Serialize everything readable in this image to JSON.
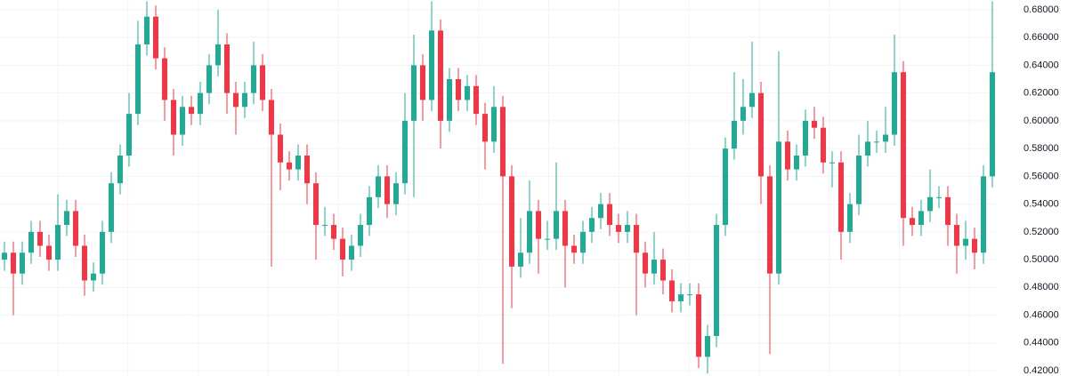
{
  "chart_data": {
    "type": "candlestick",
    "up_color": "#22ab94",
    "down_color": "#f23645",
    "grid": true,
    "ylim": [
      0.4162,
      0.687
    ],
    "yticks": [
      {
        "value": 0.42,
        "label": "0.42000"
      },
      {
        "value": 0.44,
        "label": "0.44000"
      },
      {
        "value": 0.46,
        "label": "0.46000"
      },
      {
        "value": 0.48,
        "label": "0.48000"
      },
      {
        "value": 0.5,
        "label": "0.50000"
      },
      {
        "value": 0.52,
        "label": "0.52000"
      },
      {
        "value": 0.54,
        "label": "0.54000"
      },
      {
        "value": 0.56,
        "label": "0.56000"
      },
      {
        "value": 0.58,
        "label": "0.58000"
      },
      {
        "value": 0.6,
        "label": "0.60000"
      },
      {
        "value": 0.62,
        "label": "0.62000"
      },
      {
        "value": 0.64,
        "label": "0.64000"
      },
      {
        "value": 0.66,
        "label": "0.66000"
      },
      {
        "value": 0.68,
        "label": "0.68000"
      }
    ],
    "open": [
      0.5,
      0.505,
      0.49,
      0.505,
      0.52,
      0.51,
      0.5,
      0.525,
      0.535,
      0.51,
      0.485,
      0.49,
      0.52,
      0.555,
      0.575,
      0.605,
      0.655,
      0.675,
      0.645,
      0.615,
      0.59,
      0.61,
      0.605,
      0.62,
      0.64,
      0.655,
      0.62,
      0.61,
      0.62,
      0.64,
      0.615,
      0.59,
      0.57,
      0.565,
      0.575,
      0.555,
      0.525,
      0.525,
      0.515,
      0.5,
      0.51,
      0.525,
      0.545,
      0.56,
      0.54,
      0.555,
      0.6,
      0.64,
      0.615,
      0.665,
      0.6,
      0.63,
      0.615,
      0.625,
      0.605,
      0.585,
      0.61,
      0.56,
      0.495,
      0.505,
      0.535,
      0.515,
      0.515,
      0.535,
      0.51,
      0.505,
      0.52,
      0.53,
      0.54,
      0.525,
      0.52,
      0.525,
      0.505,
      0.49,
      0.5,
      0.485,
      0.47,
      0.475,
      0.475,
      0.43,
      0.445,
      0.525,
      0.58,
      0.6,
      0.61,
      0.62,
      0.56,
      0.49,
      0.585,
      0.565,
      0.575,
      0.6,
      0.595,
      0.57,
      0.57,
      0.52,
      0.54,
      0.575,
      0.585,
      0.585,
      0.59,
      0.635,
      0.53,
      0.525,
      0.535,
      0.545,
      0.545,
      0.525,
      0.51,
      0.515,
      0.505,
      0.56
    ],
    "high": [
      0.513,
      0.513,
      0.513,
      0.528,
      0.528,
      0.518,
      0.547,
      0.543,
      0.543,
      0.518,
      0.498,
      0.528,
      0.563,
      0.583,
      0.62,
      0.672,
      0.686,
      0.683,
      0.653,
      0.623,
      0.618,
      0.618,
      0.628,
      0.648,
      0.68,
      0.663,
      0.628,
      0.628,
      0.657,
      0.648,
      0.623,
      0.598,
      0.578,
      0.583,
      0.583,
      0.563,
      0.538,
      0.533,
      0.523,
      0.518,
      0.533,
      0.553,
      0.568,
      0.568,
      0.563,
      0.62,
      0.662,
      0.648,
      0.686,
      0.673,
      0.638,
      0.638,
      0.633,
      0.633,
      0.613,
      0.625,
      0.618,
      0.568,
      0.53,
      0.557,
      0.543,
      0.528,
      0.57,
      0.543,
      0.518,
      0.528,
      0.538,
      0.548,
      0.548,
      0.533,
      0.535,
      0.533,
      0.513,
      0.52,
      0.508,
      0.493,
      0.483,
      0.483,
      0.483,
      0.453,
      0.533,
      0.588,
      0.635,
      0.63,
      0.657,
      0.628,
      0.568,
      0.65,
      0.593,
      0.583,
      0.608,
      0.61,
      0.603,
      0.578,
      0.578,
      0.548,
      0.59,
      0.6,
      0.593,
      0.61,
      0.662,
      0.643,
      0.538,
      0.543,
      0.565,
      0.553,
      0.553,
      0.533,
      0.528,
      0.523,
      0.568,
      0.686
    ],
    "low": [
      0.492,
      0.46,
      0.482,
      0.497,
      0.502,
      0.492,
      0.492,
      0.517,
      0.502,
      0.474,
      0.477,
      0.482,
      0.512,
      0.547,
      0.567,
      0.597,
      0.647,
      0.637,
      0.6,
      0.575,
      0.582,
      0.597,
      0.597,
      0.612,
      0.632,
      0.605,
      0.59,
      0.602,
      0.612,
      0.607,
      0.495,
      0.55,
      0.557,
      0.557,
      0.54,
      0.5,
      0.517,
      0.507,
      0.488,
      0.492,
      0.502,
      0.517,
      0.537,
      0.53,
      0.532,
      0.547,
      0.545,
      0.6,
      0.607,
      0.58,
      0.592,
      0.607,
      0.607,
      0.597,
      0.565,
      0.577,
      0.425,
      0.465,
      0.487,
      0.497,
      0.49,
      0.507,
      0.507,
      0.48,
      0.497,
      0.497,
      0.512,
      0.522,
      0.517,
      0.512,
      0.512,
      0.46,
      0.48,
      0.482,
      0.475,
      0.462,
      0.462,
      0.467,
      0.422,
      0.418,
      0.437,
      0.517,
      0.572,
      0.59,
      0.602,
      0.54,
      0.432,
      0.482,
      0.557,
      0.557,
      0.567,
      0.587,
      0.562,
      0.552,
      0.5,
      0.512,
      0.532,
      0.567,
      0.577,
      0.577,
      0.582,
      0.51,
      0.517,
      0.517,
      0.527,
      0.537,
      0.51,
      0.49,
      0.5,
      0.493,
      0.497,
      0.552
    ],
    "close": [
      0.505,
      0.49,
      0.505,
      0.52,
      0.51,
      0.5,
      0.525,
      0.535,
      0.51,
      0.485,
      0.49,
      0.52,
      0.555,
      0.575,
      0.605,
      0.655,
      0.675,
      0.645,
      0.615,
      0.59,
      0.61,
      0.605,
      0.62,
      0.64,
      0.655,
      0.62,
      0.61,
      0.62,
      0.64,
      0.615,
      0.59,
      0.57,
      0.565,
      0.575,
      0.555,
      0.525,
      0.525,
      0.515,
      0.5,
      0.51,
      0.525,
      0.545,
      0.56,
      0.54,
      0.555,
      0.6,
      0.64,
      0.615,
      0.665,
      0.6,
      0.63,
      0.615,
      0.625,
      0.605,
      0.585,
      0.61,
      0.56,
      0.495,
      0.505,
      0.535,
      0.515,
      0.515,
      0.535,
      0.51,
      0.505,
      0.52,
      0.53,
      0.54,
      0.525,
      0.52,
      0.525,
      0.505,
      0.49,
      0.5,
      0.485,
      0.47,
      0.475,
      0.475,
      0.43,
      0.445,
      0.525,
      0.58,
      0.6,
      0.61,
      0.62,
      0.56,
      0.49,
      0.585,
      0.565,
      0.575,
      0.6,
      0.595,
      0.57,
      0.57,
      0.52,
      0.54,
      0.575,
      0.585,
      0.585,
      0.59,
      0.635,
      0.53,
      0.525,
      0.535,
      0.545,
      0.545,
      0.525,
      0.51,
      0.515,
      0.505,
      0.56,
      0.635
    ]
  }
}
